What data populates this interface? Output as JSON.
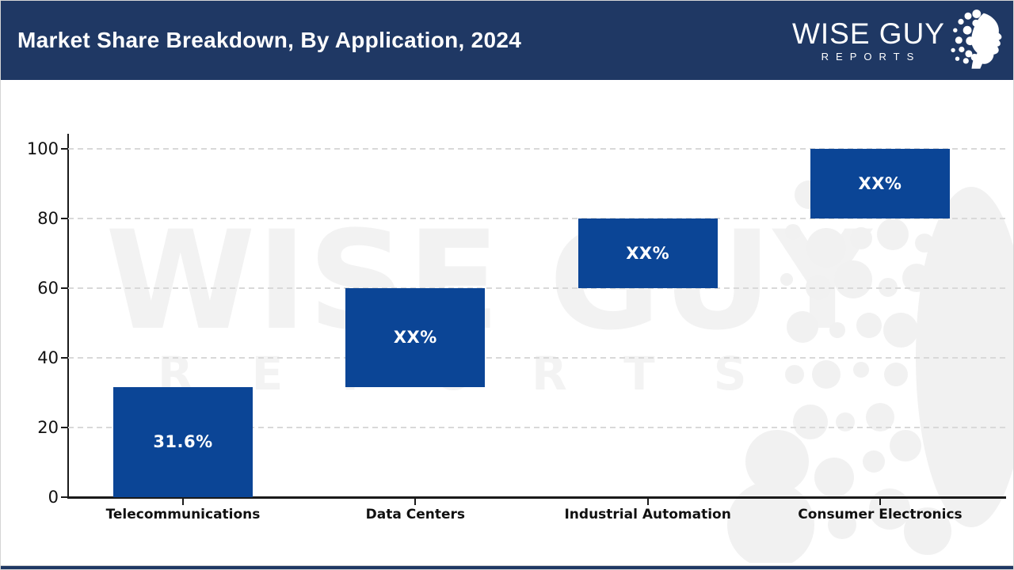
{
  "header": {
    "title": "Market Share Breakdown, By Application, 2024",
    "bg_color": "#1f3864"
  },
  "logo": {
    "line1": "WISE GUY",
    "line2": "REPORTS"
  },
  "watermark": {
    "line1": "WISE GUY",
    "line2": "REPORTS"
  },
  "chart_data": {
    "type": "bar",
    "subtype": "waterfall-stacked-breakdown",
    "title": "Market Share Breakdown, By Application, 2024",
    "categories": [
      "Telecommunications",
      "Data Centers",
      "Industrial Automation",
      "Consumer Electronics"
    ],
    "segments": [
      {
        "category": "Telecommunications",
        "start": 0,
        "end": 31.6,
        "label": "31.6%"
      },
      {
        "category": "Data Centers",
        "start": 31.6,
        "end": 60,
        "label": "XX%"
      },
      {
        "category": "Industrial Automation",
        "start": 60,
        "end": 80,
        "label": "XX%"
      },
      {
        "category": "Consumer Electronics",
        "start": 80,
        "end": 100,
        "label": "XX%"
      }
    ],
    "ylim": [
      0,
      100
    ],
    "yticks": [
      0,
      20,
      40,
      60,
      80,
      100
    ],
    "grid": "horizontal-dashed",
    "legend": "none",
    "bar_color": "#0b4596",
    "bar_label_color": "#ffffff",
    "axis_color": "#1a1a1a"
  }
}
